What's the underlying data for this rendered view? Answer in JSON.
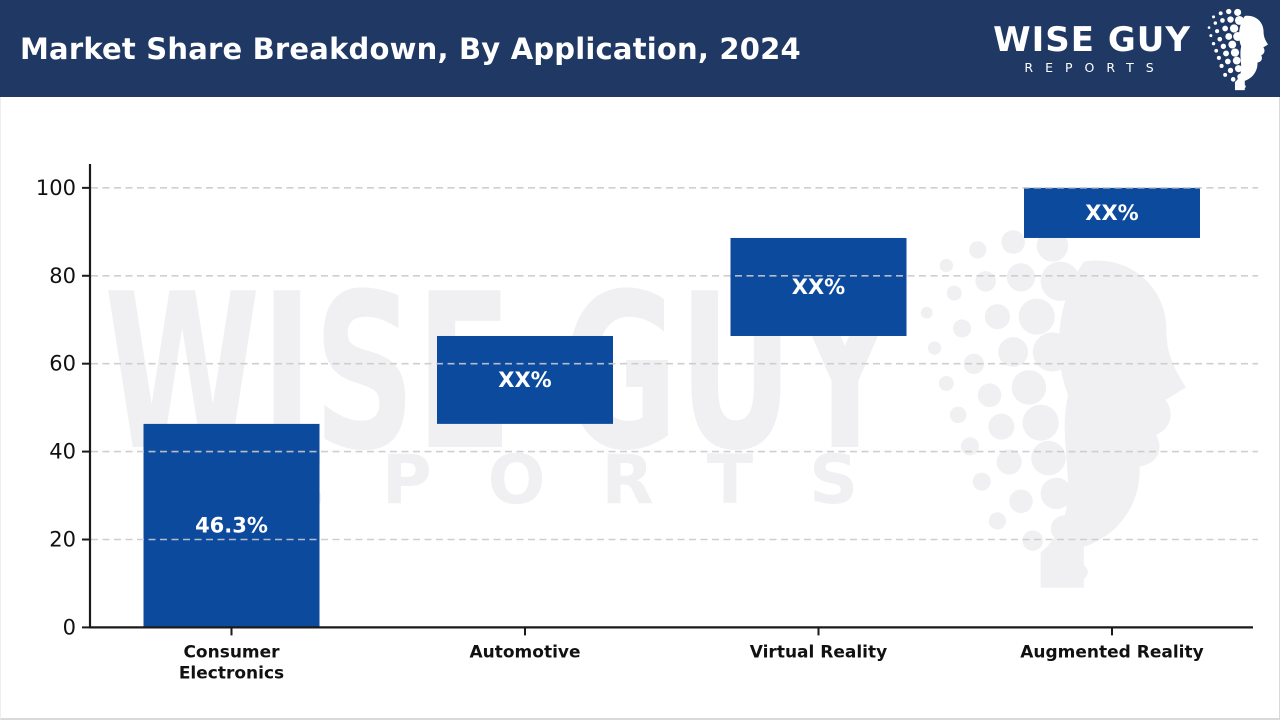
{
  "header": {
    "title": "Market Share Breakdown, By Application, 2024",
    "logo": {
      "wordmark": "WISE GUY",
      "subtitle": "REPORTS"
    }
  },
  "watermark": {
    "wordmark": "WISE GUY",
    "subtitle": "REPORTS"
  },
  "colors": {
    "header_background": "#1f3864",
    "bar_fill": "#0c4a9e",
    "bar_value_label": "#ffffff",
    "grid_line": "#cacaca",
    "axis": "#1a1a1a",
    "watermark": "#f0f0f2"
  },
  "chart_data": {
    "type": "bar",
    "variant": "stacked_waterfall_segments",
    "title": "Market Share Breakdown, By Application, 2024",
    "categories": [
      "Consumer Electronics",
      "Automotive",
      "Virtual Reality",
      "Augmented Reality"
    ],
    "segments": [
      {
        "category": "Consumer Electronics",
        "start": 0,
        "end": 46.3,
        "label": "46.3%"
      },
      {
        "category": "Automotive",
        "start": 46.3,
        "end": 66.3,
        "label": "XX%"
      },
      {
        "category": "Virtual Reality",
        "start": 66.3,
        "end": 88.6,
        "label": "XX%"
      },
      {
        "category": "Augmented Reality",
        "start": 88.6,
        "end": 100,
        "label": "XX%"
      }
    ],
    "xlabel": "",
    "ylabel": "",
    "yticks": [
      0,
      20,
      40,
      60,
      80,
      100
    ],
    "ylim": [
      0,
      105
    ],
    "grid": "horizontal-dashed",
    "legend": "none",
    "bar_color": "#0c4a9e",
    "value_label_color": "#ffffff"
  }
}
